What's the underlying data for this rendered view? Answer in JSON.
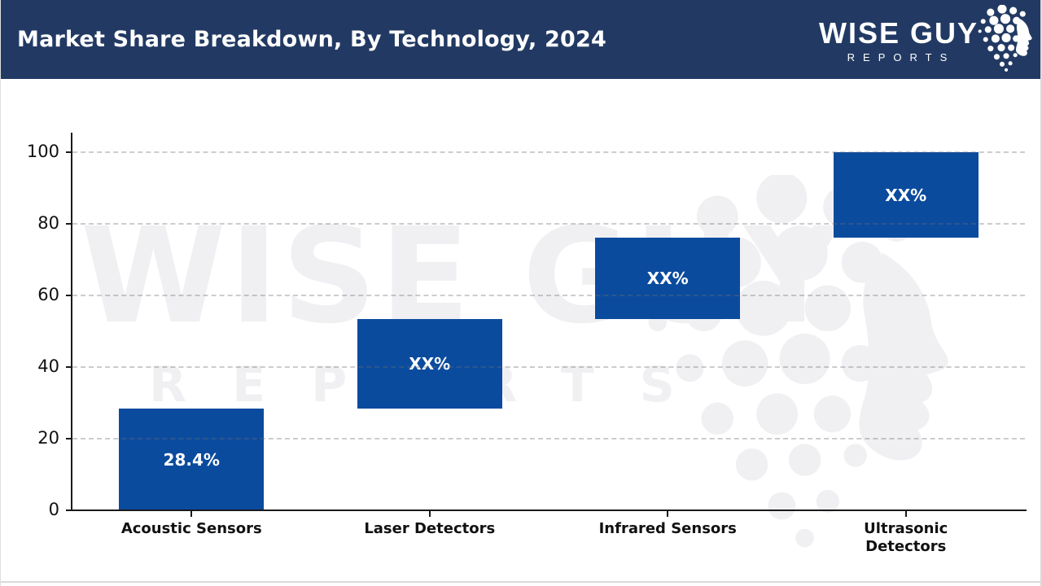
{
  "header": {
    "title": "Market Share Breakdown, By Technology, 2024",
    "logo": {
      "wordmark": "WISE GUY",
      "subtext": "REPORTS"
    }
  },
  "watermark": {
    "wordmark": "WISE GUY",
    "subtext": "REPORTS"
  },
  "colors": {
    "header_bg": "#223a63",
    "bar": "#0b4b9e",
    "bar_label": "#ffffff",
    "axis": "#1a1a1a",
    "gridline": "rgba(110,110,110,0.35)",
    "watermark": "#f0f0f3"
  },
  "chart_data": {
    "type": "bar",
    "subtype": "floating-waterfall-bars",
    "title": "Market Share Breakdown, By Technology, 2024",
    "categories": [
      "Acoustic Sensors",
      "Laser Detectors",
      "Infrared Sensors",
      "Ultrasonic\nDetectors"
    ],
    "series": [
      {
        "name": "Acoustic Sensors",
        "start": 0,
        "end": 28.4,
        "label": "28.4%"
      },
      {
        "name": "Laser Detectors",
        "start": 28.4,
        "end": 53.4,
        "label": "XX%"
      },
      {
        "name": "Infrared Sensors",
        "start": 53.4,
        "end": 76.1,
        "label": "XX%"
      },
      {
        "name": "Ultrasonic Detectors",
        "start": 76.1,
        "end": 100,
        "label": "XX%"
      }
    ],
    "ylim": [
      0,
      100
    ],
    "yticks": [
      0,
      20,
      40,
      60,
      80,
      100
    ],
    "xlabel": "",
    "ylabel": "",
    "grid": "horizontal-dashed",
    "legend": "none"
  }
}
